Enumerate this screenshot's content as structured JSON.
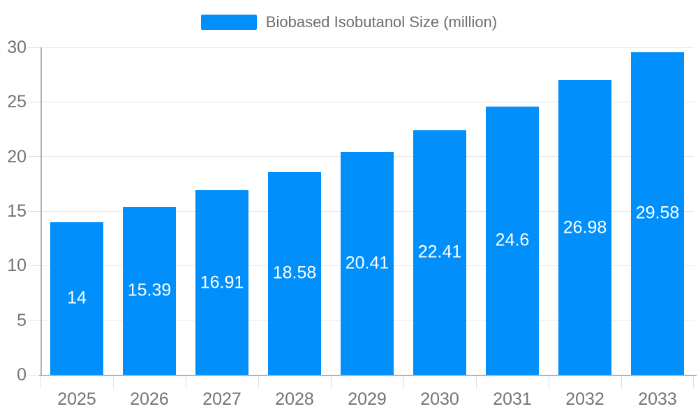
{
  "legend": {
    "label": "Biobased Isobutanol Size (million)"
  },
  "chart_data": {
    "type": "bar",
    "categories": [
      "2025",
      "2026",
      "2027",
      "2028",
      "2029",
      "2030",
      "2031",
      "2032",
      "2033"
    ],
    "series": [
      {
        "name": "Biobased Isobutanol Size (million)",
        "values": [
          14,
          15.39,
          16.91,
          18.58,
          20.41,
          22.41,
          24.6,
          26.98,
          29.58
        ]
      }
    ],
    "value_labels": [
      "14",
      "15.39",
      "16.91",
      "18.58",
      "20.41",
      "22.41",
      "24.6",
      "26.98",
      "29.58"
    ],
    "title": "",
    "xlabel": "",
    "ylabel": "",
    "ylim": [
      0,
      30
    ],
    "yticks": [
      0,
      5,
      10,
      15,
      20,
      25,
      30
    ],
    "grid": true,
    "legend_position": "top",
    "colors": {
      "bar": "#008FFB",
      "bar_label": "#ffffff",
      "axis_label": "#757575",
      "legend_text": "#6e6e6e",
      "gridline": "#e7e7e7",
      "tick": "#e0e0e0",
      "axis_line": "#b3b3b3",
      "background": "#ffffff"
    }
  }
}
